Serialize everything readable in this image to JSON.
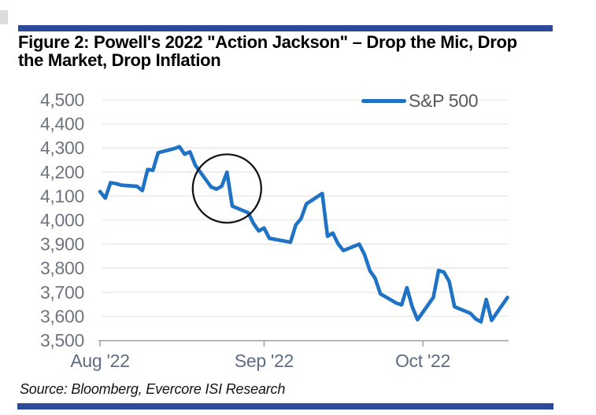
{
  "page": {
    "title_line1": "Figure 2: Powell's 2022 \"Action Jackson\" – Drop the Mic, Drop",
    "title_line2": "the Market, Drop Inflation",
    "source": "Source: Bloomberg, Evercore ISI Research"
  },
  "legend": {
    "label": "S&P 500"
  },
  "colors": {
    "accent_bar": "#2c4a99",
    "line": "#1f72c4",
    "grid": "#e6e6e6",
    "axis": "#9b9b9b",
    "y_label": "#6e7480",
    "x_label": "#5f6c85",
    "legend_text": "#595959",
    "annotation": "#151515"
  },
  "chart_data": {
    "type": "line",
    "title": "Figure 2: Powell's 2022 \"Action Jackson\" – Drop the Mic, Drop the Market, Drop Inflation",
    "legend_entries": [
      "S&P 500"
    ],
    "legend_position": "top-inside",
    "grid": "horizontal",
    "ylim": [
      3500,
      4500
    ],
    "yticks": [
      4500,
      4400,
      4300,
      4200,
      4100,
      4000,
      3900,
      3800,
      3700,
      3600,
      3500
    ],
    "ytick_labels": [
      "4,500",
      "4,400",
      "4,300",
      "4,200",
      "4,100",
      "4,000",
      "3,900",
      "3,800",
      "3,700",
      "3,600",
      "3,500"
    ],
    "xticks": [
      {
        "date": "2022-08-01",
        "label": "Aug '22"
      },
      {
        "date": "2022-09-01",
        "label": "Sep '22"
      },
      {
        "date": "2022-10-01",
        "label": "Oct '22"
      }
    ],
    "series": [
      {
        "name": "S&P 500",
        "color": "#1f72c4",
        "points": [
          [
            "2022-08-01",
            4118.6
          ],
          [
            "2022-08-02",
            4091.2
          ],
          [
            "2022-08-03",
            4155.2
          ],
          [
            "2022-08-04",
            4152.0
          ],
          [
            "2022-08-05",
            4145.2
          ],
          [
            "2022-08-08",
            4140.1
          ],
          [
            "2022-08-09",
            4122.5
          ],
          [
            "2022-08-10",
            4210.2
          ],
          [
            "2022-08-11",
            4207.3
          ],
          [
            "2022-08-12",
            4280.2
          ],
          [
            "2022-08-15",
            4297.1
          ],
          [
            "2022-08-16",
            4305.2
          ],
          [
            "2022-08-17",
            4274.0
          ],
          [
            "2022-08-18",
            4283.7
          ],
          [
            "2022-08-19",
            4228.5
          ],
          [
            "2022-08-22",
            4138.0
          ],
          [
            "2022-08-23",
            4128.7
          ],
          [
            "2022-08-24",
            4140.8
          ],
          [
            "2022-08-25",
            4199.1
          ],
          [
            "2022-08-26",
            4057.7
          ],
          [
            "2022-08-29",
            4030.6
          ],
          [
            "2022-08-30",
            3986.2
          ],
          [
            "2022-08-31",
            3955.0
          ],
          [
            "2022-09-01",
            3966.9
          ],
          [
            "2022-09-02",
            3924.3
          ],
          [
            "2022-09-06",
            3908.2
          ],
          [
            "2022-09-07",
            3979.9
          ],
          [
            "2022-09-08",
            4006.2
          ],
          [
            "2022-09-09",
            4067.4
          ],
          [
            "2022-09-12",
            4110.4
          ],
          [
            "2022-09-13",
            3932.7
          ],
          [
            "2022-09-14",
            3946.0
          ],
          [
            "2022-09-15",
            3901.4
          ],
          [
            "2022-09-16",
            3873.3
          ],
          [
            "2022-09-19",
            3899.9
          ],
          [
            "2022-09-20",
            3855.9
          ],
          [
            "2022-09-21",
            3789.9
          ],
          [
            "2022-09-22",
            3758.0
          ],
          [
            "2022-09-23",
            3693.2
          ],
          [
            "2022-09-26",
            3655.0
          ],
          [
            "2022-09-27",
            3647.3
          ],
          [
            "2022-09-28",
            3719.0
          ],
          [
            "2022-09-29",
            3640.5
          ],
          [
            "2022-09-30",
            3585.6
          ],
          [
            "2022-10-03",
            3678.4
          ],
          [
            "2022-10-04",
            3790.9
          ],
          [
            "2022-10-05",
            3783.3
          ],
          [
            "2022-10-06",
            3744.5
          ],
          [
            "2022-10-07",
            3639.7
          ],
          [
            "2022-10-10",
            3612.4
          ],
          [
            "2022-10-11",
            3588.8
          ],
          [
            "2022-10-12",
            3577.0
          ],
          [
            "2022-10-13",
            3669.9
          ],
          [
            "2022-10-14",
            3583.1
          ],
          [
            "2022-10-17",
            3678.0
          ]
        ]
      }
    ],
    "annotation": {
      "shape": "circle",
      "center_date": "2022-08-25",
      "center_value": 4131,
      "radius_in_value_units": 142
    }
  }
}
